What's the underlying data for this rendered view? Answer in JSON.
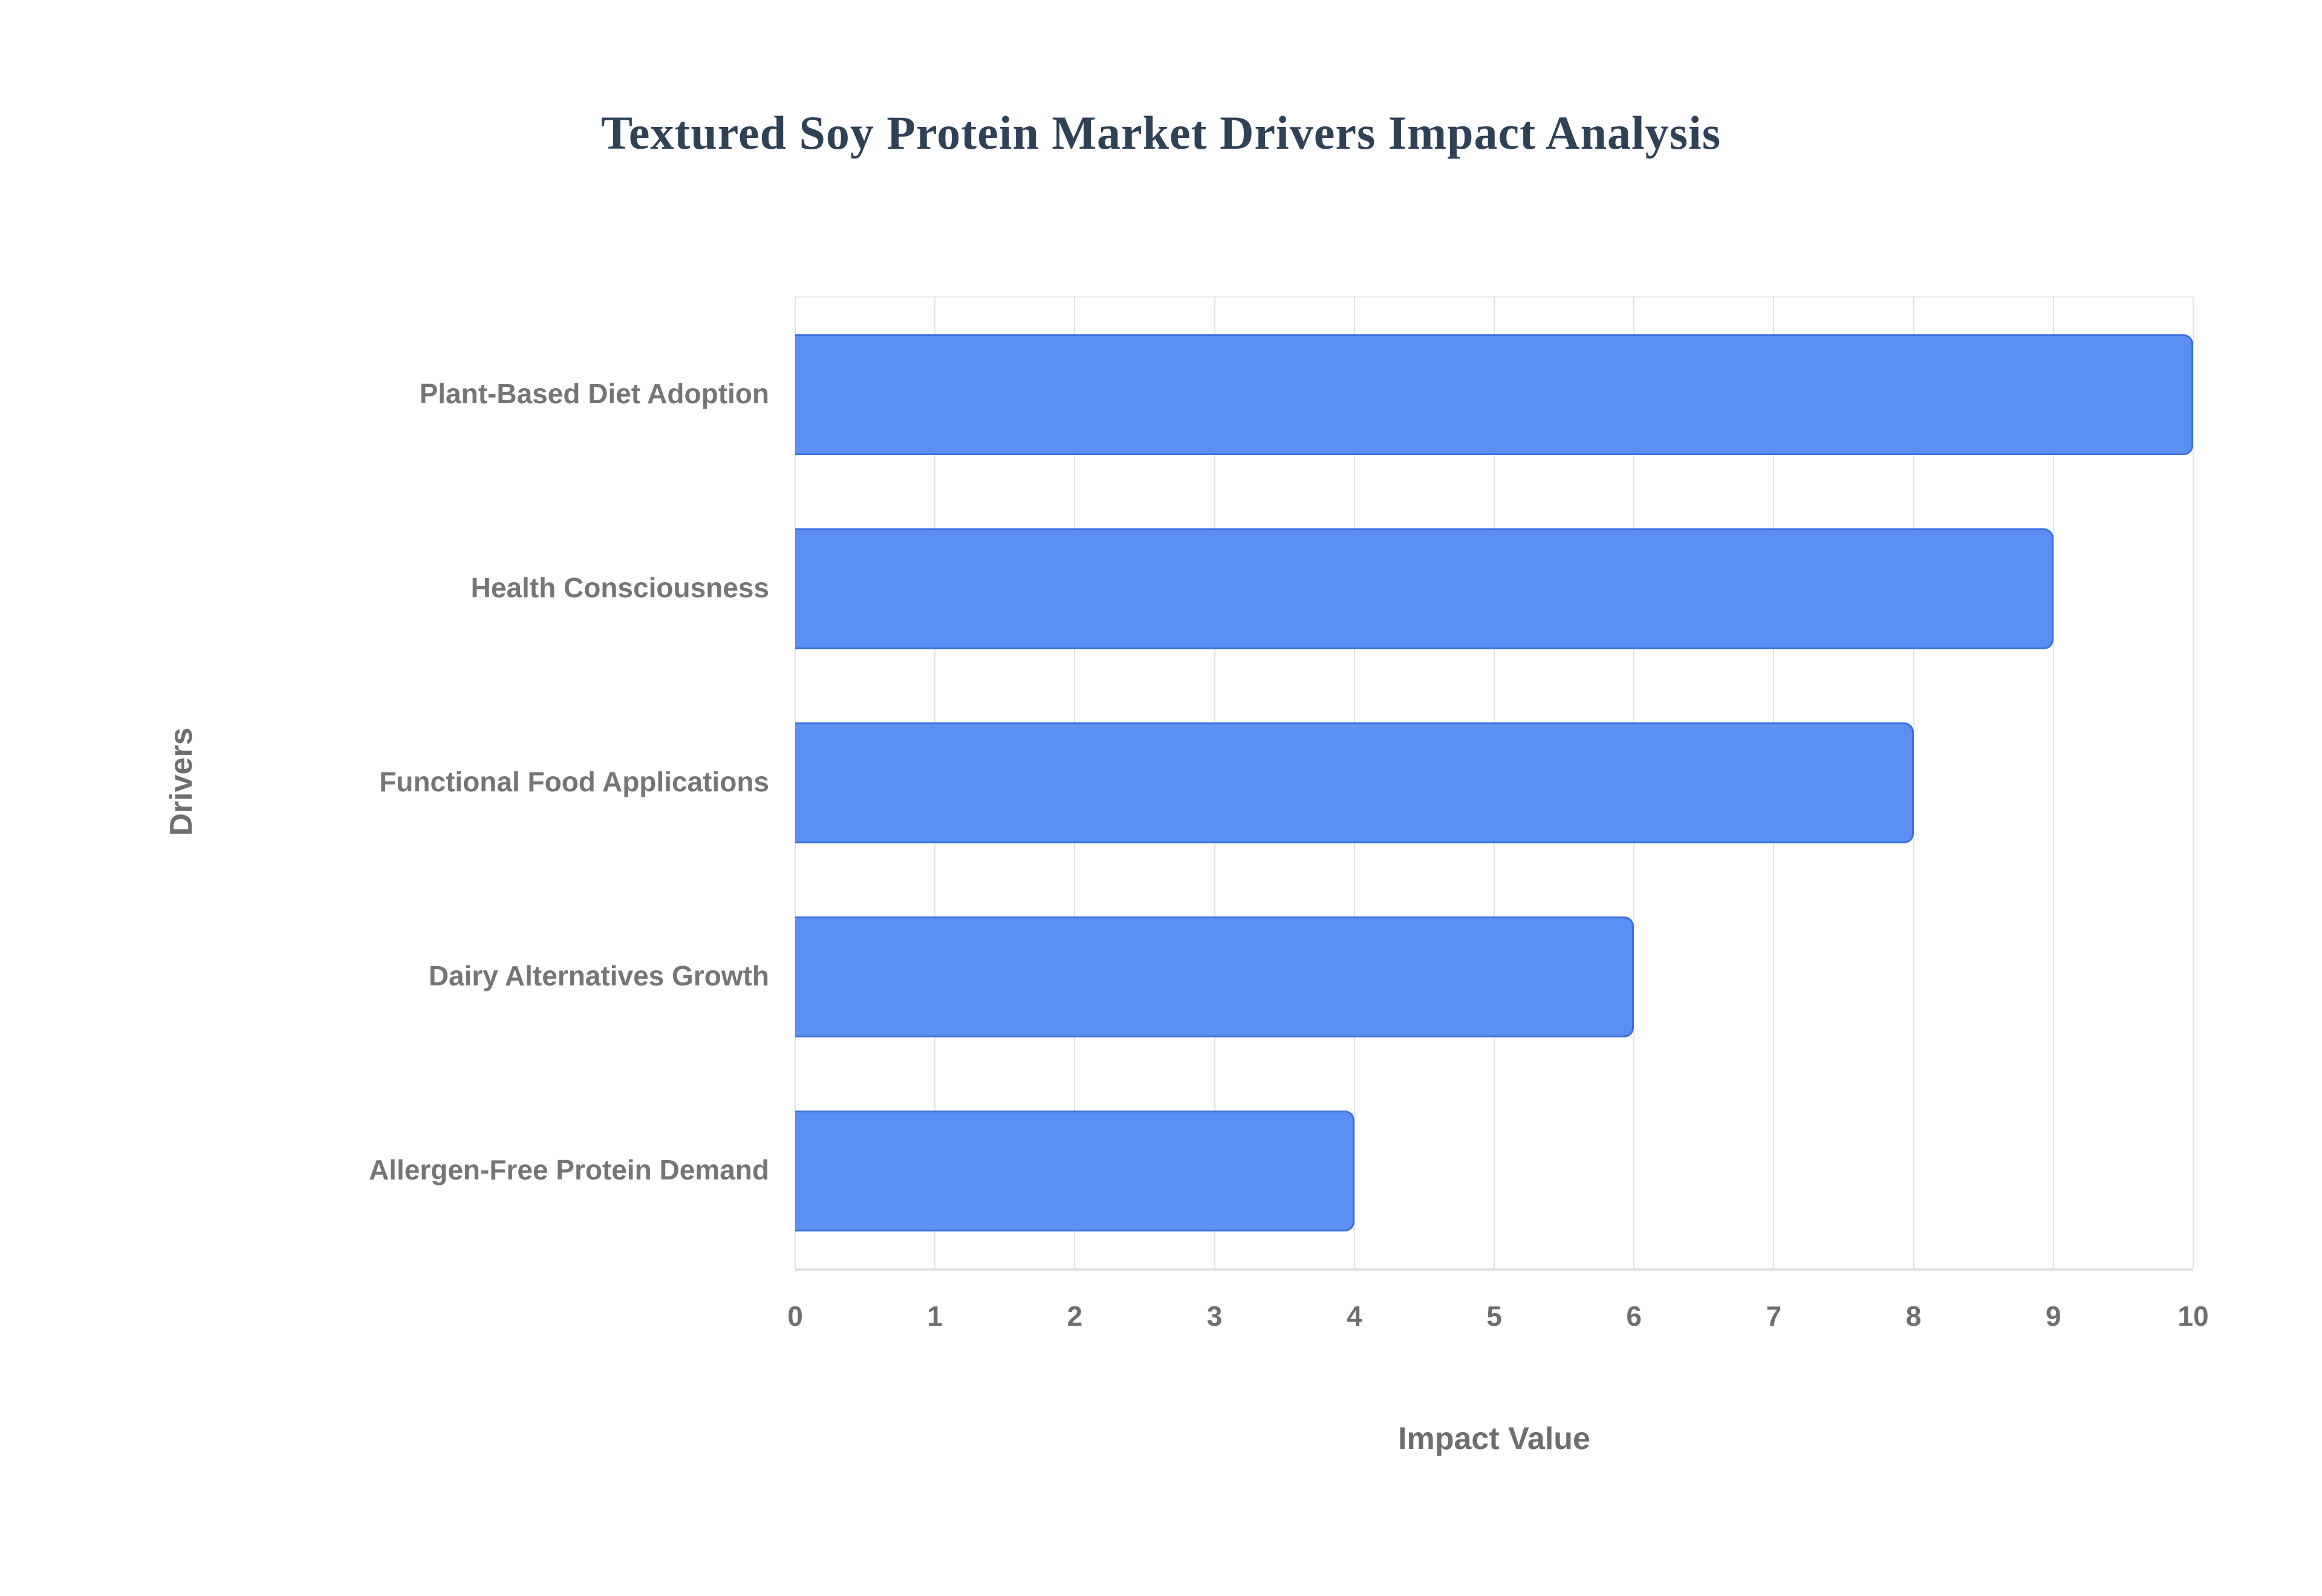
{
  "chart_data": {
    "type": "bar",
    "orientation": "horizontal",
    "title": "Textured Soy Protein Market Drivers Impact Analysis",
    "categories": [
      "Plant-Based Diet Adoption",
      "Health Consciousness",
      "Functional Food Applications",
      "Dairy Alternatives Growth",
      "Allergen-Free Protein Demand"
    ],
    "values": [
      10,
      9,
      8,
      6,
      4
    ],
    "xlabel": "Impact Value",
    "ylabel": "Drivers",
    "xlim": [
      0,
      10
    ],
    "x_ticks": [
      "0",
      "1",
      "2",
      "3",
      "4",
      "5",
      "6",
      "7",
      "8",
      "9",
      "10"
    ],
    "grid": "vertical-integer-gridlines",
    "legend": "none",
    "colors": {
      "bar_fill": "#5b8ff2",
      "bar_border": "#3a70e2",
      "title": "#2f4156",
      "labels": "#757575",
      "ticks": "#6e6e6e",
      "gridline": "#e3e3e3",
      "background": "#ffffff"
    }
  }
}
